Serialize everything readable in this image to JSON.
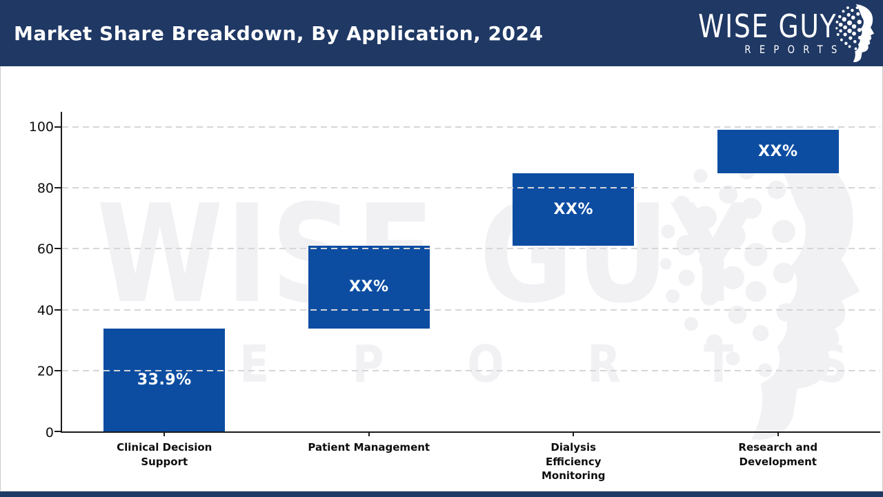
{
  "header": {
    "title": "Market Share Breakdown, By Application, 2024",
    "logo": {
      "line1": "WISE GUY",
      "line2": "REPORTS"
    }
  },
  "watermark": {
    "line1": "WISE GUY",
    "line2": "R E P O R T S"
  },
  "colors": {
    "header_bg": "#1f3864",
    "bar": "#0c4da2",
    "gridline": "#d6d6d6",
    "axis": "#1a1a1a",
    "bar_label": "#ffffff",
    "watermark": "#f1f1f4",
    "page_border": "#c9c9c9"
  },
  "chart_data": {
    "type": "bar",
    "subtype": "floating-segment-waterfall",
    "title": "Market Share Breakdown, By Application, 2024",
    "categories": [
      "Clinical Decision Support",
      "Patient Management",
      "Dialysis Efficiency Monitoring",
      "Research and Development"
    ],
    "category_display": [
      "Clinical Decision\nSupport",
      "Patient Management",
      "Dialysis\nEfficiency\nMonitoring",
      "Research and\nDevelopment"
    ],
    "segments": [
      {
        "category": "Clinical Decision Support",
        "start": 0,
        "end": 33.9,
        "label": "33.9%"
      },
      {
        "category": "Patient Management",
        "start": 33.9,
        "end": 61.0,
        "label": "XX%"
      },
      {
        "category": "Dialysis Efficiency Monitoring",
        "start": 61.0,
        "end": 84.9,
        "label": "XX%"
      },
      {
        "category": "Research and Development",
        "start": 84.9,
        "end": 99.0,
        "label": "XX%"
      }
    ],
    "yticks": [
      0,
      20,
      40,
      60,
      80,
      100
    ],
    "ylim": [
      0,
      105
    ],
    "xlabel": "",
    "ylabel": "",
    "grid": "horizontal-dashed",
    "legend": "none"
  }
}
